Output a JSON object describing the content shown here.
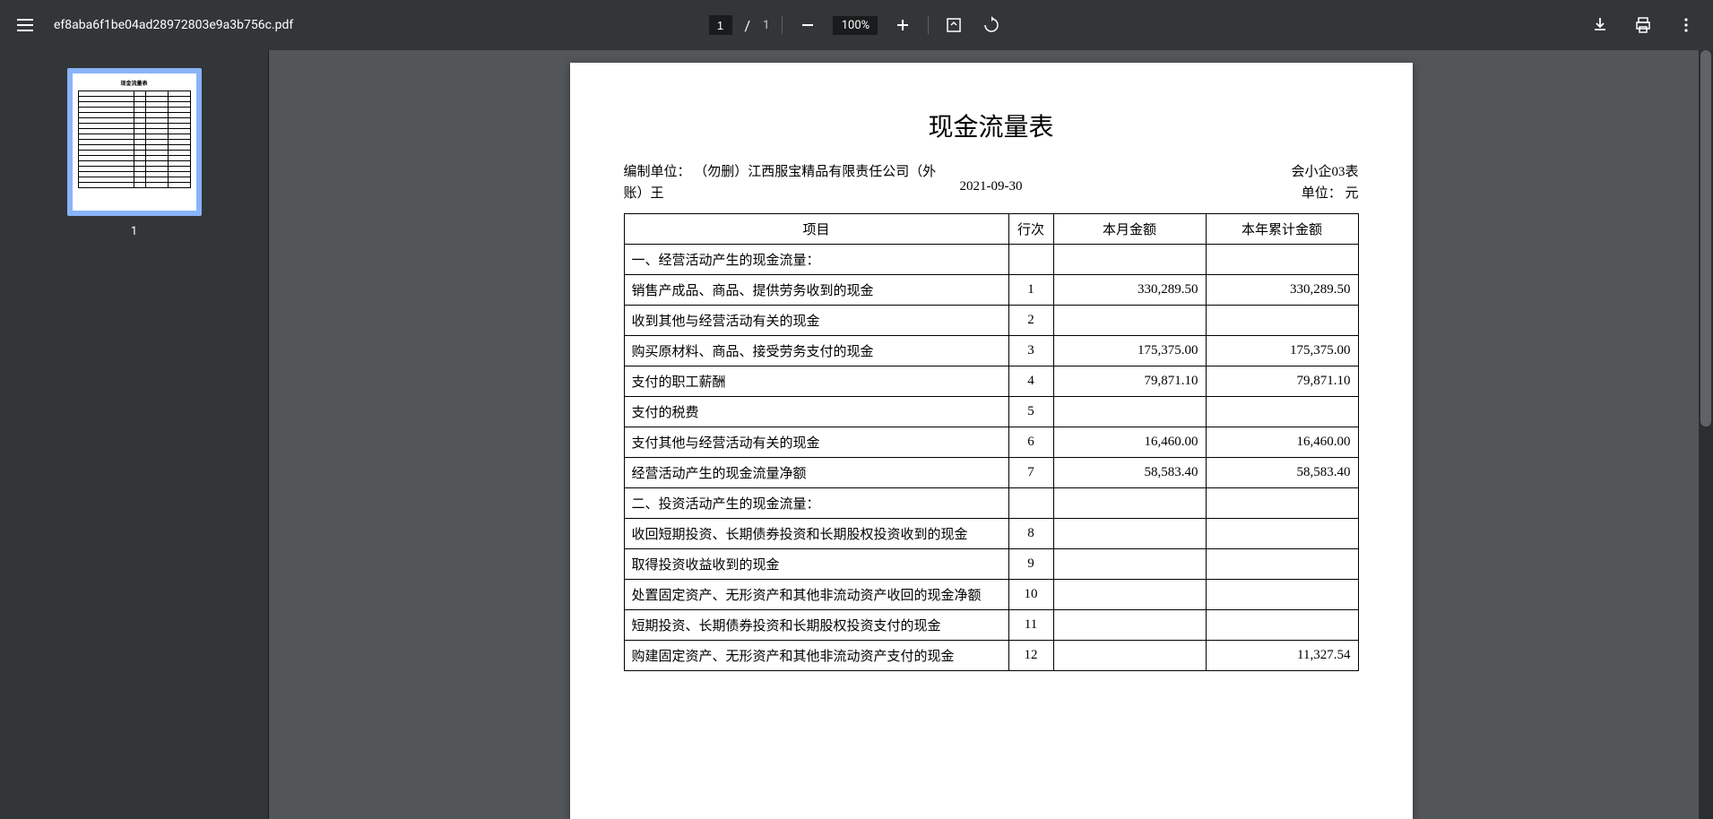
{
  "toolbar": {
    "filename": "ef8aba6f1be04ad28972803e9a3b756c.pdf",
    "page_current": "1",
    "page_total": "1",
    "page_sep": "/",
    "zoom_level": "100%"
  },
  "sidebar": {
    "thumb_page_num": "1"
  },
  "document": {
    "title": "现金流量表",
    "meta": {
      "compiler_label": "编制单位： （勿删）江西服宝精品有限责任公司（外账）王",
      "date": "2021-09-30",
      "form_no": "会小企03表",
      "unit": "单位： 元"
    },
    "table": {
      "headers": {
        "item": "项目",
        "row": "行次",
        "month": "本月金额",
        "year": "本年累计金额"
      },
      "rows": [
        {
          "item": "一、经营活动产生的现金流量：",
          "row": "",
          "month": "",
          "year": ""
        },
        {
          "item": "销售产成品、商品、提供劳务收到的现金",
          "row": "1",
          "month": "330,289.50",
          "year": "330,289.50"
        },
        {
          "item": "收到其他与经营活动有关的现金",
          "row": "2",
          "month": "",
          "year": ""
        },
        {
          "item": "购买原材料、商品、接受劳务支付的现金",
          "row": "3",
          "month": "175,375.00",
          "year": "175,375.00"
        },
        {
          "item": "支付的职工薪酬",
          "row": "4",
          "month": "79,871.10",
          "year": "79,871.10"
        },
        {
          "item": "支付的税费",
          "row": "5",
          "month": "",
          "year": ""
        },
        {
          "item": "支付其他与经营活动有关的现金",
          "row": "6",
          "month": "16,460.00",
          "year": "16,460.00"
        },
        {
          "item": "经营活动产生的现金流量净额",
          "row": "7",
          "month": "58,583.40",
          "year": "58,583.40"
        },
        {
          "item": "二、投资活动产生的现金流量：",
          "row": "",
          "month": "",
          "year": ""
        },
        {
          "item": "收回短期投资、长期债券投资和长期股权投资收到的现金",
          "row": "8",
          "month": "",
          "year": ""
        },
        {
          "item": "取得投资收益收到的现金",
          "row": "9",
          "month": "",
          "year": ""
        },
        {
          "item": "处置固定资产、无形资产和其他非流动资产收回的现金净额",
          "row": "10",
          "month": "",
          "year": ""
        },
        {
          "item": "短期投资、长期债券投资和长期股权投资支付的现金",
          "row": "11",
          "month": "",
          "year": ""
        },
        {
          "item": "购建固定资产、无形资产和其他非流动资产支付的现金",
          "row": "12",
          "month": "",
          "year": "11,327.54"
        }
      ]
    }
  }
}
